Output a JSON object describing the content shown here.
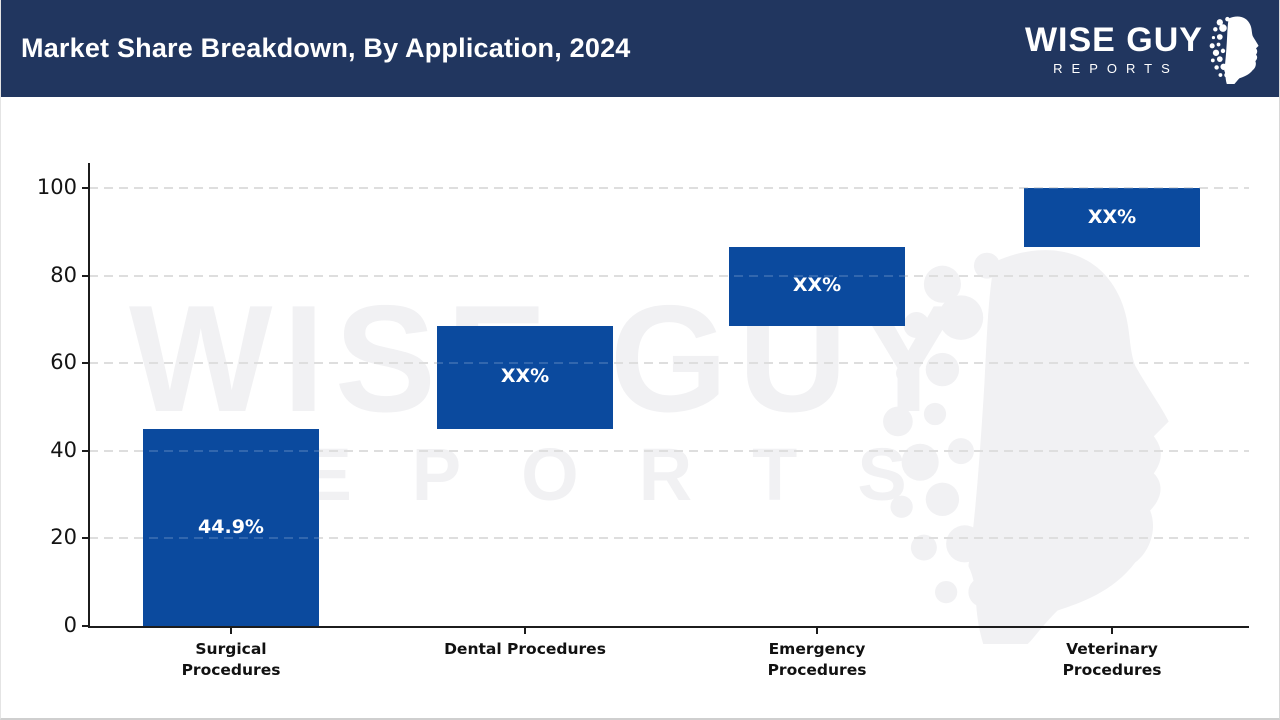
{
  "header": {
    "title": "Market Share Breakdown, By Application, 2024",
    "bg_color": "#21365f",
    "logo": {
      "line1": "WISE GUY",
      "line2": "REPORTS"
    }
  },
  "watermark": {
    "line1": "WISE GUY",
    "line2": "REPORTS"
  },
  "chart_data": {
    "type": "bar",
    "subtype": "floating-waterfall",
    "title": "Market Share Breakdown, By Application, 2024",
    "categories": [
      "Surgical Procedures",
      "Dental Procedures",
      "Emergency Procedures",
      "Veterinary Procedures"
    ],
    "category_label_lines": [
      [
        "Surgical",
        "Procedures"
      ],
      [
        "Dental Procedures"
      ],
      [
        "Emergency",
        "Procedures"
      ],
      [
        "Veterinary",
        "Procedures"
      ]
    ],
    "series": [
      {
        "name": "Market Share %",
        "segments": [
          {
            "category": "Surgical Procedures",
            "start": 0,
            "end": 44.9,
            "label": "44.9%"
          },
          {
            "category": "Dental Procedures",
            "start": 44.9,
            "end": 68.6,
            "label": "XX%"
          },
          {
            "category": "Emergency Procedures",
            "start": 68.6,
            "end": 86.5,
            "label": "XX%"
          },
          {
            "category": "Veterinary Procedures",
            "start": 86.5,
            "end": 100,
            "label": "XX%"
          }
        ]
      }
    ],
    "yticks": [
      0,
      20,
      40,
      60,
      80,
      100
    ],
    "ylim": [
      0,
      105
    ],
    "xlabel": "",
    "ylabel": "",
    "grid": "horizontal-dashed",
    "legend": "none",
    "bar_color": "#0b4a9e",
    "grid_color": "#d8d8d8",
    "axis_color": "#1c1c1c"
  }
}
